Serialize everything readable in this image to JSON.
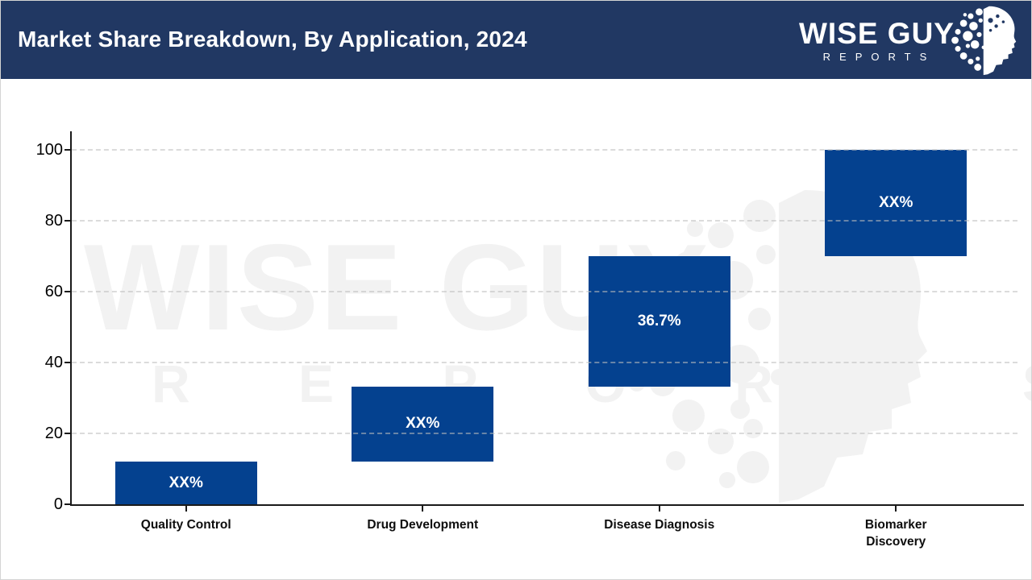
{
  "header": {
    "title": "Market Share Breakdown, By Application, 2024",
    "background_color": "#213863",
    "logo": {
      "line1": "WISE GUY",
      "line2": "REPORTS"
    }
  },
  "watermark": {
    "line1": "WISE GUY",
    "line2": "R E P O R T S"
  },
  "chart_data": {
    "type": "bar",
    "subtype": "waterfall-floating-bars",
    "title": "Market Share Breakdown, By Application, 2024",
    "unit": "%",
    "categories": [
      "Quality Control",
      "Drug Development",
      "Disease Diagnosis",
      "Biomarker Discovery"
    ],
    "bars": [
      {
        "category": "Quality Control",
        "tick_label": "Quality Control",
        "start": 0,
        "end": 12,
        "label": "XX%"
      },
      {
        "category": "Drug Development",
        "tick_label": "Drug Development",
        "start": 12,
        "end": 33.3,
        "label": "XX%"
      },
      {
        "category": "Disease Diagnosis",
        "tick_label": "Disease Diagnosis",
        "start": 33.3,
        "end": 70,
        "label": "36.7%"
      },
      {
        "category": "Biomarker Discovery",
        "tick_label": "Biomarker\nDiscovery",
        "start": 70,
        "end": 100,
        "label": "XX%"
      }
    ],
    "yticks": [
      0,
      20,
      40,
      60,
      80,
      100
    ],
    "ylim": [
      0,
      100
    ],
    "bar_color": "#04418f",
    "label_color": "#ffffff",
    "grid": "horizontal-dashed",
    "legend": "none"
  }
}
